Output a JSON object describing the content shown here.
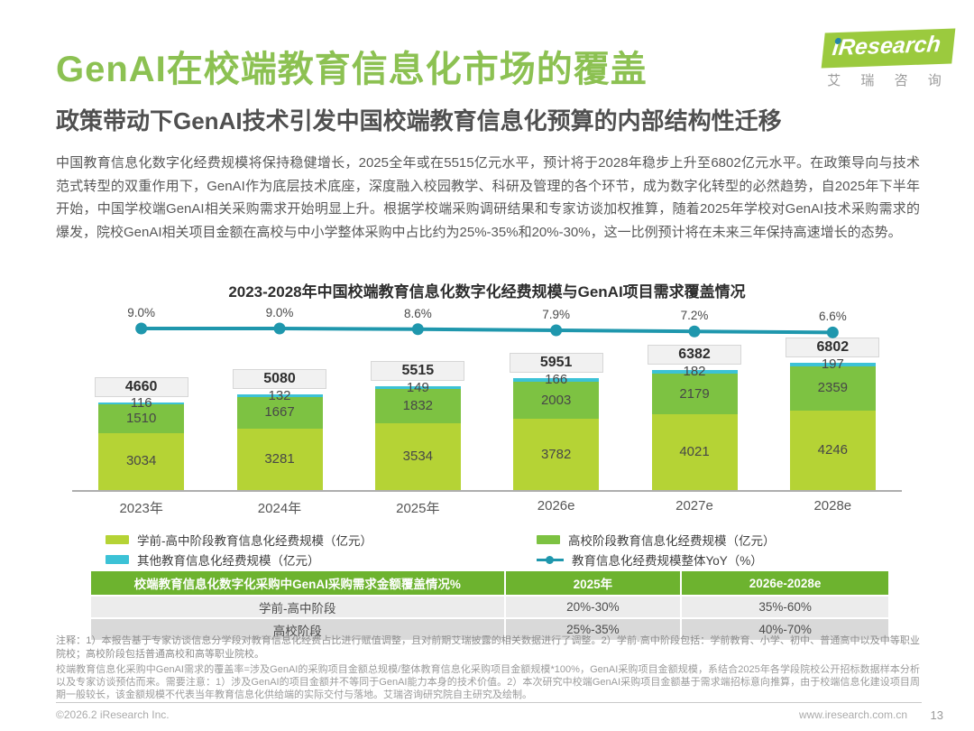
{
  "page": {
    "title": "GenAI在校端教育信息化市场的覆盖",
    "subtitle": "政策带动下GenAI技术引发中国校端教育信息化预算的内部结构性迁移",
    "body": "中国教育信息化数字化经费规模将保持稳健增长，2025全年或在5515亿元水平，预计将于2028年稳步上升至6802亿元水平。在政策导向与技术范式转型的双重作用下，GenAI作为底层技术底座，深度融入校园教学、科研及管理的各个环节，成为数字化转型的必然趋势，自2025年下半年开始，中国学校端GenAI相关采购需求开始明显上升。根据学校端采购调研结果和专家访谈加权推算，随着2025年学校对GenAI技术采购需求的爆发，院校GenAI相关项目金额在高校与中小学整体采购中占比约为25%-35%和20%-30%，这一比例预计将在未来三年保持高速增长的态势。"
  },
  "logo": {
    "brand": "iResearch",
    "brand_cn": "艾 瑞 咨 询"
  },
  "chart_data": {
    "type": "bar",
    "subtype": "stacked-bar-with-line",
    "title": "2023-2028年中国校端教育信息化数字化经费规模与GenAI项目需求覆盖情况",
    "categories": [
      "2023年",
      "2024年",
      "2025年",
      "2026e",
      "2027e",
      "2028e"
    ],
    "totals": [
      4660,
      5080,
      5515,
      5951,
      6382,
      6802
    ],
    "series": [
      {
        "name": "学前-高中阶段教育信息化经费规模（亿元）",
        "color": "#b5d335",
        "values": [
          3034,
          3281,
          3534,
          3782,
          4021,
          4246
        ]
      },
      {
        "name": "高校阶段教育信息化经费规模（亿元）",
        "color": "#7dc242",
        "values": [
          1510,
          1667,
          1832,
          2003,
          2179,
          2359
        ]
      },
      {
        "name": "其他教育信息化经费规模（亿元）",
        "color": "#3cc2d6",
        "values": [
          116,
          132,
          149,
          166,
          182,
          197
        ]
      }
    ],
    "line": {
      "name": "教育信息化经费规模整体YoY（%）",
      "color": "#1f97ad",
      "values": [
        9.0,
        9.0,
        8.6,
        7.9,
        7.2,
        6.6
      ],
      "labels": [
        "9.0%",
        "9.0%",
        "8.6%",
        "7.9%",
        "7.2%",
        "6.6%"
      ]
    },
    "legend_position": "bottom",
    "grid": false,
    "unit": "亿元"
  },
  "table": {
    "header": [
      "校端教育信息化数字化采购中GenAI采购需求金额覆盖情况%",
      "2025年",
      "2026e-2028e"
    ],
    "rows": [
      [
        "学前-高中阶段",
        "20%-30%",
        "35%-60%"
      ],
      [
        "高校阶段",
        "25%-35%",
        "40%-70%"
      ]
    ]
  },
  "notes": {
    "line1": "注释：1）本报告基于专家访谈信息分学段对教育信息化经费占比进行赋值调整，且对前期艾瑞披露的相关数据进行了调整。2）学前-高中阶段包括：学前教育、小学、初中、普通高中以及中等职业院校；高校阶段包括普通高校和高等职业院校。",
    "line2": "校端教育信息化采购中GenAI需求的覆盖率=涉及GenAI的采购项目金额总规模/整体教育信息化采购项目金额规模*100%，GenAI采购项目金额规模，系结合2025年各学段院校公开招标数据样本分析以及专家访谈预估而来。需要注意：1）涉及GenAI的项目金额并不等同于GenAI能力本身的技术价值。2）本次研究中校端GenAI采购项目金额基于需求端招标意向推算，由于校端信息化建设项目周期一般较长，该金额规模不代表当年教育信息化供给端的实际交付与落地。艾瑞咨询研究院自主研究及绘制。"
  },
  "footer": {
    "copyright": "©2026.2 iResearch Inc.",
    "site": "www.iresearch.com.cn",
    "page_number": "13"
  }
}
